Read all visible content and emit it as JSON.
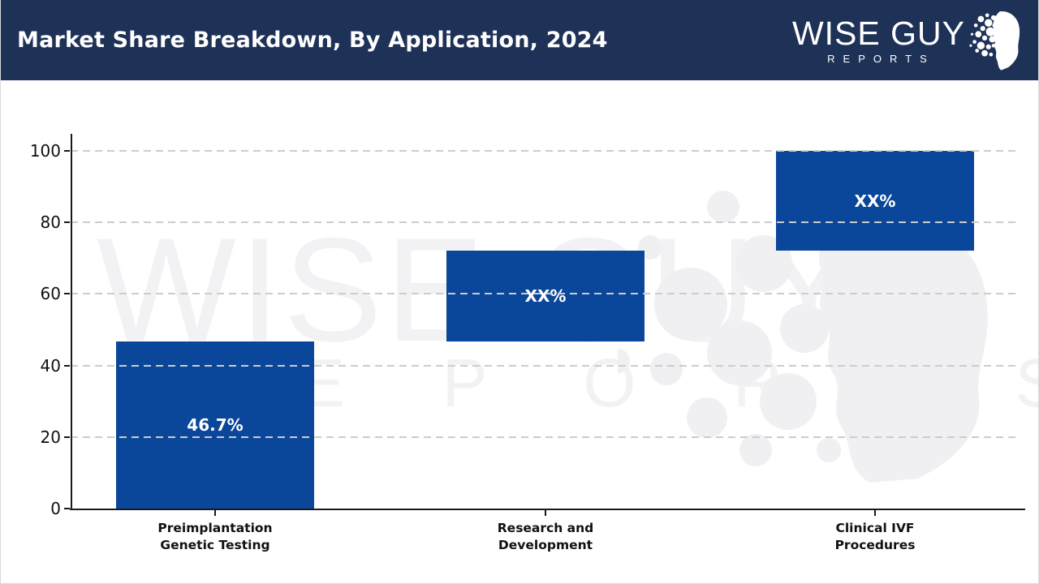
{
  "header": {
    "title": "Market Share Breakdown, By Application, 2024",
    "logo": {
      "line1": "WISE GUY",
      "line2": "REPORTS"
    }
  },
  "watermark": {
    "line1": "WISE GUY",
    "line2": "REPORTS"
  },
  "colors": {
    "header_bg": "#1e3157",
    "bar": "#0a4699",
    "grid": "#cccccc",
    "axis": "#1a1a1a",
    "watermark": "#f2f2f4",
    "label_on_bar": "#ffffff"
  },
  "chart_data": {
    "type": "bar",
    "variant": "floating-segment-waterfall",
    "title": "Market Share Breakdown, By Application, 2024",
    "xlabel": "",
    "ylabel": "",
    "ylim": [
      0,
      105
    ],
    "yticks": [
      0,
      20,
      40,
      60,
      80,
      100
    ],
    "grid": "horizontal-dashed, drawn above bars",
    "legend": "none",
    "categories": [
      {
        "line1": "Preimplantation",
        "line2": "Genetic Testing"
      },
      {
        "line1": "Research and",
        "line2": "Development"
      },
      {
        "line1": "Clinical IVF",
        "line2": "Procedures"
      }
    ],
    "segments": [
      {
        "category": "Preimplantation Genetic Testing",
        "start": 0,
        "end": 46.7,
        "data_label": "46.7%"
      },
      {
        "category": "Research and Development",
        "start": 46.7,
        "end": 72.1,
        "data_label": "XX%"
      },
      {
        "category": "Clinical IVF Procedures",
        "start": 72.1,
        "end": 100,
        "data_label": "XX%"
      }
    ]
  }
}
